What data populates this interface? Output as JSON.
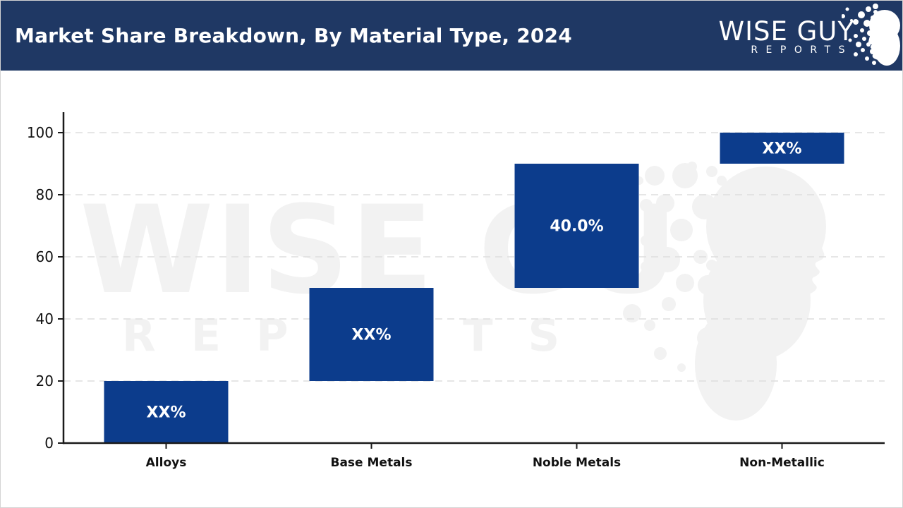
{
  "header": {
    "title": "Market Share Breakdown, By Material Type, 2024",
    "logo": {
      "line1": "WISE GUY",
      "line2": "REPORTS"
    }
  },
  "watermark": {
    "brand": "WISE GU",
    "reports": "REPORTS"
  },
  "colors": {
    "header_bg": "#1f3864",
    "bar": "#0c3c8c",
    "bar_label": "#ffffff",
    "grid": "#dedede",
    "axis": "#1a1a1a",
    "tick_label": "#111111",
    "watermark": "#f2f2f2"
  },
  "chart_data": {
    "type": "bar",
    "subtype": "floating-segment-bars",
    "title": "Market Share Breakdown, By Material Type, 2024",
    "categories": [
      "Alloys",
      "Base Metals",
      "Noble Metals",
      "Non-Metallic"
    ],
    "segments": [
      {
        "category": "Alloys",
        "start": 0,
        "end": 20,
        "label": "XX%"
      },
      {
        "category": "Base Metals",
        "start": 20,
        "end": 50,
        "label": "XX%"
      },
      {
        "category": "Noble Metals",
        "start": 50,
        "end": 90,
        "label": "40.0%"
      },
      {
        "category": "Non-Metallic",
        "start": 90,
        "end": 100,
        "label": "XX%"
      }
    ],
    "xlabel": "",
    "ylabel": "",
    "ylim": [
      0,
      100
    ],
    "yticks": [
      0,
      20,
      40,
      60,
      80,
      100
    ],
    "grid": "horizontal-dashed",
    "legend": "none",
    "bar_color": "#0c3c8c",
    "bar_label_color": "#ffffff"
  }
}
